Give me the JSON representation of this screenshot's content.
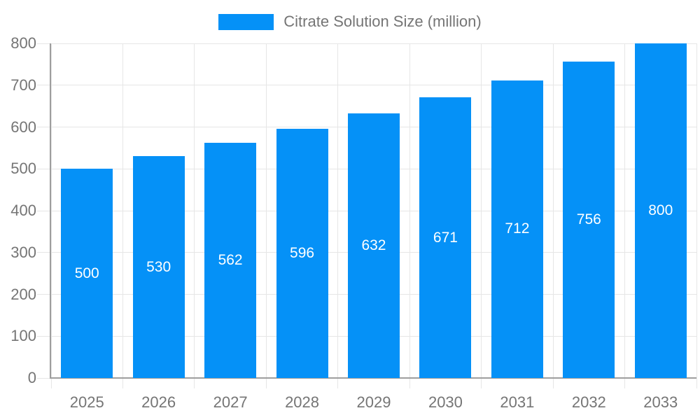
{
  "chart_data": {
    "type": "bar",
    "title": "",
    "categories": [
      "2025",
      "2026",
      "2027",
      "2028",
      "2029",
      "2030",
      "2031",
      "2032",
      "2033"
    ],
    "series": [
      {
        "name": "Citrate Solution Size (million)",
        "values": [
          500,
          530,
          562,
          596,
          632,
          671,
          712,
          756,
          800
        ]
      }
    ],
    "xlabel": "",
    "ylabel": "",
    "ylim": [
      0,
      800
    ],
    "ytick_step": 100,
    "yticks": [
      0,
      100,
      200,
      300,
      400,
      500,
      600,
      700,
      800
    ],
    "grid": true,
    "legend_position": "top",
    "value_labels": "inside-center",
    "colors": {
      "bar": "#0591f7",
      "gridline": "#e6e6e6",
      "axis_line": "#9e9e9e",
      "axis_text": "#757575",
      "value_label": "#ffffff",
      "background": "#ffffff"
    }
  }
}
